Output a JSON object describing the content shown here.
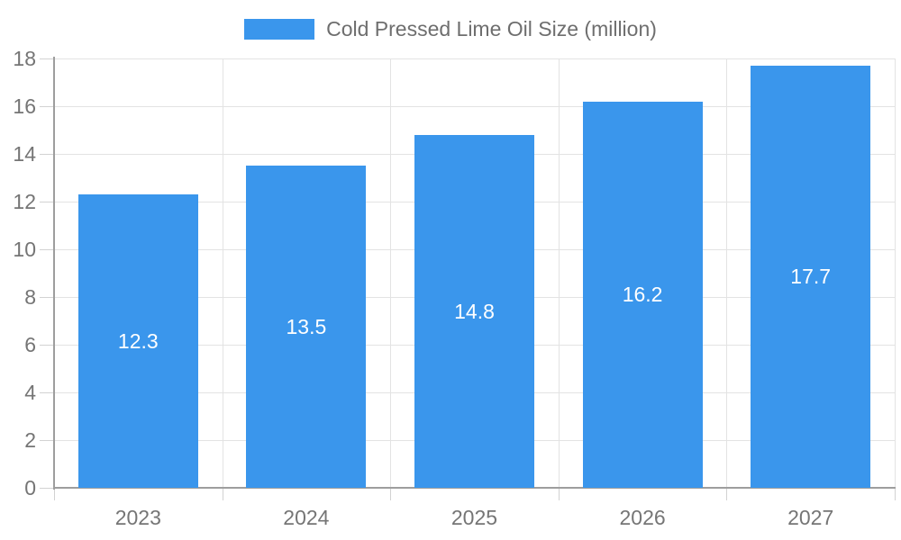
{
  "chart_data": {
    "type": "bar",
    "title": "",
    "legend": "Cold Pressed Lime Oil Size (million)",
    "legend_position": "top",
    "categories": [
      "2023",
      "2024",
      "2025",
      "2026",
      "2027"
    ],
    "series": [
      {
        "name": "Cold Pressed Lime Oil Size (million)",
        "values": [
          12.3,
          13.5,
          14.8,
          16.2,
          17.7
        ]
      }
    ],
    "value_labels": [
      "12.3",
      "13.5",
      "14.8",
      "16.2",
      "17.7"
    ],
    "xlabel": "",
    "ylabel": "",
    "ylim": [
      0,
      18
    ],
    "ytick_step": 2,
    "yticks": [
      0,
      2,
      4,
      6,
      8,
      10,
      12,
      14,
      16,
      18
    ],
    "grid": true
  },
  "style": {
    "bar_color": "#3a96ec",
    "grid_color": "#e3e3e3",
    "tick_color": "#d2d2d2",
    "axis_color": "#9e9e9e",
    "text_color": "#757575",
    "value_label_color": "#ffffff"
  }
}
